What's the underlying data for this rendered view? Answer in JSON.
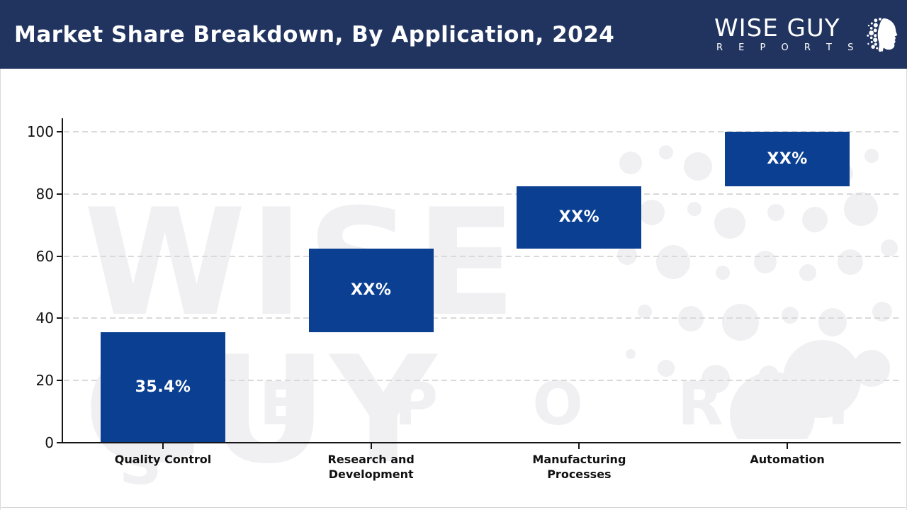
{
  "header": {
    "title": "Market Share Breakdown, By Application, 2024",
    "logo": {
      "line1": "WISE GUY",
      "line2": "R E P O R T S"
    }
  },
  "watermark": {
    "line1": "WISE GUY",
    "line2": "R E P O R T S"
  },
  "colors": {
    "header_bg": "#20345f",
    "bar_fill": "#0b3f92",
    "bar_label_text": "#ffffff",
    "grid_line": "#d9d9d9",
    "axis_line": "#151515",
    "watermark": "#f0f0f3"
  },
  "chart_data": {
    "type": "bar",
    "subtype": "waterfall",
    "title": "Market Share Breakdown, By Application, 2024",
    "xlabel": "",
    "ylabel": "",
    "categories": [
      "Quality Control",
      "Research and Development",
      "Manufacturing Processes",
      "Automation"
    ],
    "category_lines": [
      [
        "Quality Control"
      ],
      [
        "Research and",
        "Development"
      ],
      [
        "Manufacturing",
        "Processes"
      ],
      [
        "Automation"
      ]
    ],
    "bars": [
      {
        "category": "Quality Control",
        "start": 0,
        "end": 35.4,
        "label": "35.4%"
      },
      {
        "category": "Research and Development",
        "start": 35.4,
        "end": 62.5,
        "label": "XX%"
      },
      {
        "category": "Manufacturing Processes",
        "start": 62.5,
        "end": 82.5,
        "label": "XX%"
      },
      {
        "category": "Automation",
        "start": 82.5,
        "end": 100,
        "label": "XX%"
      }
    ],
    "yticks": [
      0,
      20,
      40,
      60,
      80,
      100
    ],
    "ylim": [
      0,
      104
    ],
    "grid": "horizontal dashed",
    "legend": "none"
  }
}
